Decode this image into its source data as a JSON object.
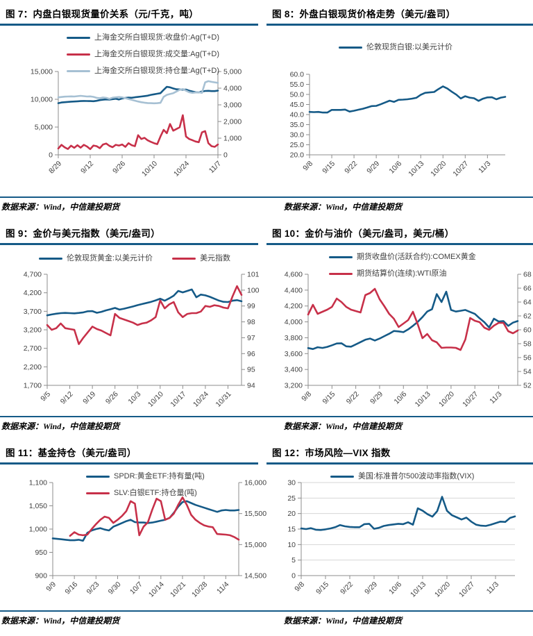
{
  "page": {
    "source_note": "数据来源：Wind，中信建投期货"
  },
  "colors": {
    "navy": "#155a87",
    "red": "#c73049",
    "light_blue": "#a6c0d3",
    "axis_line": "#8c8c8c",
    "tick_text": "#404040",
    "grid_line": "#d6d6d6",
    "rule_navy": "#155a87"
  },
  "chart_data": [
    {
      "id": "fig7",
      "type": "line",
      "title": "图 7：内盘白银现货量价关系（元/千克，吨）",
      "grid": false,
      "legend_position": "top",
      "x_tick_step": 10,
      "x_tick_labels": [
        "8/29",
        "9/12",
        "9/26",
        "10/10",
        "10/24",
        "11/7"
      ],
      "left_axis": {
        "min": 0,
        "max": 15000,
        "tick_labels": [
          "0",
          "5,000",
          "10,000",
          "15,000"
        ]
      },
      "right_axis": {
        "min": 0,
        "max": 5000,
        "tick_labels": [
          "0",
          "1,000",
          "2,000",
          "3,000",
          "4,000",
          "5,000"
        ]
      },
      "series": [
        {
          "name": "上海金交所白银现货:收盘价:Ag(T+D)",
          "axis": "left",
          "color_key": "navy",
          "values": [
            9300,
            9420,
            9480,
            9530,
            9570,
            9600,
            9640,
            9680,
            9700,
            9690,
            9670,
            9650,
            9720,
            9850,
            9930,
            9980,
            9950,
            10020,
            10100,
            9960,
            10150,
            10250,
            10300,
            10280,
            10360,
            10430,
            10500,
            10570,
            10650,
            10800,
            10900,
            11000,
            11100,
            11700,
            12250,
            12150,
            11950,
            11800,
            11780,
            11720,
            11750,
            11550,
            11400,
            11280,
            11250,
            11400,
            11500,
            11520,
            11480,
            11470,
            11560
          ]
        },
        {
          "name": "上海金交所白银现货:成交量:Ag(T+D)",
          "axis": "right",
          "color_key": "red",
          "values": [
            380,
            600,
            450,
            350,
            550,
            420,
            580,
            430,
            600,
            500,
            340,
            560,
            520,
            400,
            620,
            680,
            540,
            460,
            600,
            560,
            620,
            480,
            700,
            580,
            520,
            1180,
            950,
            1020,
            870,
            780,
            700,
            640,
            1100,
            1500,
            1300,
            1850,
            1450,
            1550,
            1650,
            2380,
            1100,
            950,
            880,
            800,
            760,
            1350,
            1420,
            700,
            520,
            480,
            620
          ]
        },
        {
          "name": "上海金交所白银现货:持仓量:Ag(T+D)",
          "axis": "right",
          "color_key": "light_blue",
          "values": [
            3450,
            3470,
            3490,
            3500,
            3510,
            3500,
            3520,
            3540,
            3520,
            3500,
            3510,
            3480,
            3420,
            3400,
            3440,
            3420,
            3360,
            3430,
            3450,
            3470,
            3450,
            3400,
            3350,
            3300,
            3250,
            3200,
            3160,
            3130,
            3110,
            3100,
            3090,
            3100,
            3120,
            3480,
            3600,
            3650,
            3700,
            3800,
            3900,
            3950,
            3850,
            3760,
            3720,
            3740,
            3760,
            3720,
            4350,
            4420,
            4380,
            4350,
            4320
          ]
        }
      ]
    },
    {
      "id": "fig8",
      "type": "line",
      "title": "图 8：外盘白银现货价格走势（美元/盎司）",
      "grid": false,
      "legend_position": "top",
      "x_tick_step": 5,
      "x_tick_labels": [
        "9/8",
        "9/15",
        "9/22",
        "9/29",
        "10/6",
        "10/13",
        "10/20",
        "10/27",
        "11/3"
      ],
      "left_axis": {
        "min": 20,
        "max": 60,
        "tick_labels": [
          "20.0",
          "25.0",
          "30.0",
          "35.0",
          "40.0",
          "45.0",
          "50.0",
          "55.0",
          "60.0"
        ]
      },
      "series": [
        {
          "name": "伦敦现货白银:以美元计价",
          "axis": "left",
          "color_key": "navy",
          "values": [
            41.3,
            41.2,
            41.3,
            41.0,
            41.0,
            42.3,
            42.3,
            42.3,
            42.5,
            41.5,
            41.9,
            42.4,
            42.9,
            43.5,
            44.2,
            44.3,
            45.1,
            46.0,
            46.9,
            46.3,
            47.3,
            47.4,
            47.6,
            47.9,
            48.3,
            49.8,
            50.8,
            51.0,
            51.2,
            52.7,
            54.0,
            52.9,
            51.3,
            49.9,
            48.0,
            49.1,
            48.4,
            48.1,
            46.8,
            47.9,
            48.5,
            48.6,
            47.6,
            48.4,
            48.8
          ]
        }
      ]
    },
    {
      "id": "fig9",
      "type": "line",
      "title": "图 9：金价与美元指数（美元/盎司）",
      "grid": false,
      "legend_position": "top",
      "x_tick_step": 5,
      "x_tick_labels": [
        "9/5",
        "9/12",
        "9/19",
        "9/26",
        "10/3",
        "10/10",
        "10/17",
        "10/24",
        "10/31"
      ],
      "left_axis": {
        "min": 1700,
        "max": 4700,
        "tick_labels": [
          "1,700",
          "2,200",
          "2,700",
          "3,200",
          "3,700",
          "4,200",
          "4,700"
        ]
      },
      "right_axis": {
        "min": 94,
        "max": 101,
        "tick_labels": [
          "94",
          "95",
          "96",
          "97",
          "98",
          "99",
          "100",
          "101"
        ]
      },
      "series": [
        {
          "name": "伦敦现货黄金:以美元计价",
          "axis": "left",
          "color_key": "navy",
          "values": [
            3590,
            3615,
            3635,
            3650,
            3655,
            3650,
            3645,
            3655,
            3670,
            3700,
            3705,
            3660,
            3685,
            3725,
            3755,
            3790,
            3745,
            3770,
            3800,
            3830,
            3865,
            3895,
            3925,
            3955,
            3995,
            4040,
            3985,
            4050,
            4120,
            4250,
            4210,
            4250,
            4290,
            4080,
            4150,
            4130,
            4090,
            4040,
            3990,
            3955,
            3950,
            3985,
            4000,
            3970
          ]
        },
        {
          "name": "美元指数",
          "axis": "right",
          "color_key": "red",
          "values": [
            97.8,
            97.5,
            97.6,
            97.9,
            97.6,
            97.55,
            97.5,
            96.6,
            97.0,
            97.35,
            97.7,
            97.55,
            97.45,
            97.3,
            97.15,
            98.5,
            98.25,
            98.15,
            98.05,
            97.95,
            97.8,
            97.9,
            97.95,
            98.1,
            98.3,
            99.35,
            98.85,
            99.1,
            99.25,
            98.6,
            98.3,
            98.5,
            98.55,
            98.55,
            98.65,
            99.0,
            98.95,
            99.05,
            99.0,
            98.9,
            98.85,
            99.6,
            100.25,
            99.7
          ]
        }
      ]
    },
    {
      "id": "fig10",
      "type": "line",
      "title": "图 10：金价与油价（美元/盎司，美元/桶）",
      "grid": false,
      "legend_position": "top",
      "x_tick_step": 5,
      "x_tick_labels": [
        "9/8",
        "9/15",
        "9/22",
        "9/29",
        "10/6",
        "10/13",
        "10/20",
        "10/27",
        "11/3"
      ],
      "left_axis": {
        "min": 3200,
        "max": 4600,
        "tick_labels": [
          "3,200",
          "3,400",
          "3,600",
          "3,800",
          "4,000",
          "4,200",
          "4,400",
          "4,600"
        ]
      },
      "right_axis": {
        "min": 52,
        "max": 68,
        "tick_labels": [
          "52",
          "54",
          "56",
          "58",
          "60",
          "62",
          "64",
          "66",
          "68"
        ]
      },
      "series": [
        {
          "name": "期货收盘价(活跃合约):COMEX黄金",
          "axis": "left",
          "color_key": "navy",
          "values": [
            3670,
            3658,
            3680,
            3672,
            3685,
            3705,
            3728,
            3730,
            3692,
            3687,
            3715,
            3745,
            3775,
            3790,
            3765,
            3790,
            3820,
            3850,
            3885,
            3880,
            3870,
            3905,
            3950,
            4000,
            4060,
            4130,
            4160,
            4350,
            4250,
            4380,
            4150,
            4130,
            4140,
            4150,
            4125,
            4100,
            4045,
            3995,
            3930,
            4040,
            4005,
            4010,
            3950,
            3990,
            4010
          ]
        },
        {
          "name": "期货结算价(连续):WTI原油",
          "axis": "right",
          "color_key": "red",
          "values": [
            62.2,
            63.6,
            62.3,
            62.6,
            62.9,
            63.3,
            64.5,
            64.0,
            63.3,
            62.9,
            62.7,
            62.5,
            65.0,
            65.3,
            65.9,
            64.4,
            63.4,
            62.3,
            61.6,
            60.4,
            60.9,
            61.4,
            62.6,
            60.8,
            58.8,
            59.4,
            58.5,
            58.2,
            57.4,
            57.45,
            57.45,
            57.4,
            57.1,
            58.6,
            61.7,
            61.3,
            61.1,
            60.3,
            60.0,
            60.6,
            61.0,
            61.0,
            59.8,
            59.5,
            59.9
          ]
        }
      ]
    },
    {
      "id": "fig11",
      "type": "line",
      "title": "图 11：基金持仓（美元/盎司）",
      "grid": false,
      "legend_position": "top",
      "x_tick_step": 5,
      "x_tick_labels": [
        "9/9",
        "9/16",
        "9/23",
        "9/30",
        "10/7",
        "10/14",
        "10/21",
        "10/28",
        "11/4"
      ],
      "left_axis": {
        "min": 900,
        "max": 1100,
        "tick_labels": [
          "900",
          "950",
          "1,000",
          "1,050",
          "1,100"
        ]
      },
      "right_axis": {
        "min": 14500,
        "max": 16000,
        "tick_labels": [
          "14,500",
          "15,000",
          "15,500",
          "16,000"
        ]
      },
      "series": [
        {
          "name": "SPDR:黄金ETF:持有量(吨)",
          "axis": "left",
          "color_key": "navy",
          "values": [
            980,
            979,
            978,
            977,
            976,
            976,
            977,
            975,
            992,
            997,
            1000,
            1002,
            999,
            997,
            1005,
            1009,
            1013,
            1017,
            1020,
            1015,
            1014,
            1014,
            1013,
            1014,
            1016,
            1018,
            1020,
            1024,
            1035,
            1048,
            1058,
            1060,
            1056,
            1052,
            1049,
            1046,
            1043,
            1040,
            1037,
            1040,
            1041,
            1040,
            1040,
            1041
          ]
        },
        {
          "name": "SLV:白银ETF:持仓量(吨)",
          "axis": "right",
          "color_key": "red",
          "values": [
            null,
            null,
            null,
            null,
            15140,
            15200,
            15160,
            15150,
            15160,
            15250,
            15330,
            15400,
            15450,
            15430,
            15350,
            15400,
            15460,
            15540,
            15700,
            15660,
            15150,
            15290,
            15360,
            15560,
            15740,
            15700,
            15400,
            15430,
            15500,
            15640,
            15760,
            15640,
            15480,
            15400,
            15350,
            15310,
            15290,
            15280,
            15170,
            15165,
            15160,
            15150,
            15120,
            15080
          ]
        }
      ]
    },
    {
      "id": "fig12",
      "type": "line",
      "title": "图 12：市场风险—VIX 指数",
      "grid": true,
      "legend_position": "top",
      "x_tick_step": 5,
      "x_tick_labels": [
        "9/8",
        "9/15",
        "9/22",
        "9/29",
        "10/6",
        "10/13",
        "10/20",
        "10/27",
        "11/3"
      ],
      "left_axis": {
        "min": 0,
        "max": 30,
        "tick_labels": [
          "0",
          "5",
          "10",
          "15",
          "20",
          "25",
          "30"
        ]
      },
      "series": [
        {
          "name": "美国:标准普尔500波动率指数(VIX)",
          "axis": "left",
          "color_key": "navy",
          "values": [
            15.2,
            15.0,
            15.3,
            14.8,
            14.7,
            14.9,
            15.2,
            15.6,
            16.3,
            15.9,
            15.7,
            15.6,
            15.6,
            16.6,
            16.7,
            15.1,
            15.4,
            16.0,
            16.3,
            16.5,
            16.7,
            16.6,
            17.2,
            16.4,
            21.7,
            20.9,
            19.8,
            19.0,
            20.8,
            25.4,
            20.9,
            19.5,
            18.8,
            18.1,
            18.7,
            17.4,
            16.4,
            16.1,
            16.0,
            16.4,
            16.9,
            17.4,
            17.3,
            18.6,
            19.1
          ]
        }
      ]
    }
  ]
}
